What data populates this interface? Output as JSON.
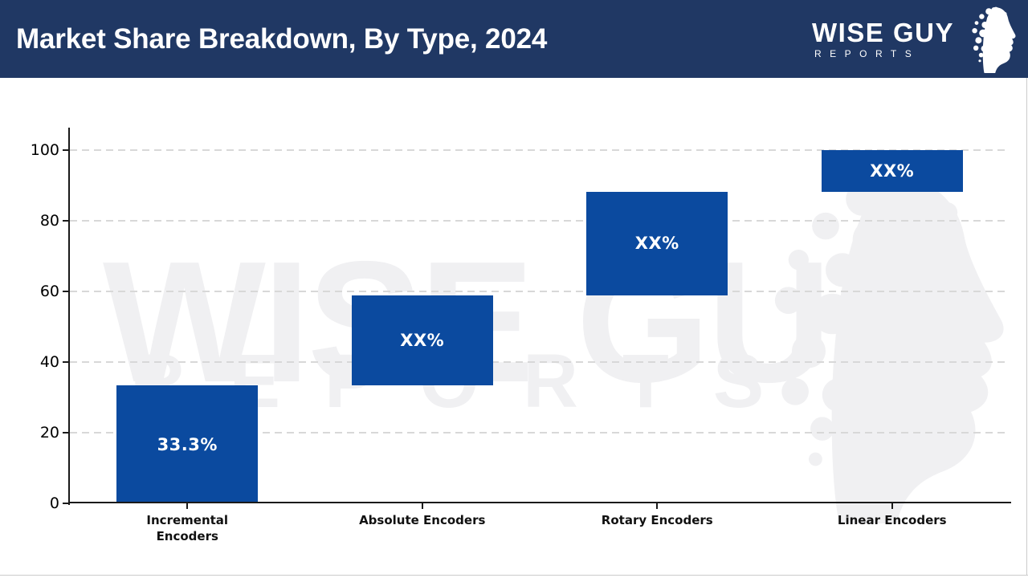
{
  "header": {
    "title": "Market Share Breakdown, By Type, 2024",
    "logo": {
      "line1": "WISE GUY",
      "line2": "REPORTS"
    }
  },
  "watermark": {
    "line1": "WISE GUY",
    "line2": "REPORTS"
  },
  "colors": {
    "header_bg": "#203864",
    "title": "#ffffff",
    "bar": "#0b4a9f",
    "bar_label": "#ffffff",
    "axis": "#1a1a1a",
    "grid": "#d8d8d8",
    "wm": "#f0f0f2",
    "hairline": "#cbcbcb"
  },
  "chart_data": {
    "type": "bar",
    "subtype": "waterfall",
    "title": "Market Share Breakdown, By Type, 2024",
    "categories": [
      "Incremental\nEncoders",
      "Absolute Encoders",
      "Rotary Encoders",
      "Linear Encoders"
    ],
    "series": [
      {
        "name": "Market share by type",
        "segments": [
          [
            0,
            33.3
          ],
          [
            33.3,
            58.9
          ],
          [
            58.9,
            88.2
          ],
          [
            88.2,
            100
          ]
        ]
      }
    ],
    "bar_labels": [
      "33.3%",
      "XX%",
      "XX%",
      "XX%"
    ],
    "xlabel": "",
    "ylabel": "",
    "ylim": [
      0,
      100
    ],
    "yticks": [
      0,
      20,
      40,
      60,
      80,
      100
    ],
    "grid": "horizontal dashed",
    "legend": "none"
  }
}
